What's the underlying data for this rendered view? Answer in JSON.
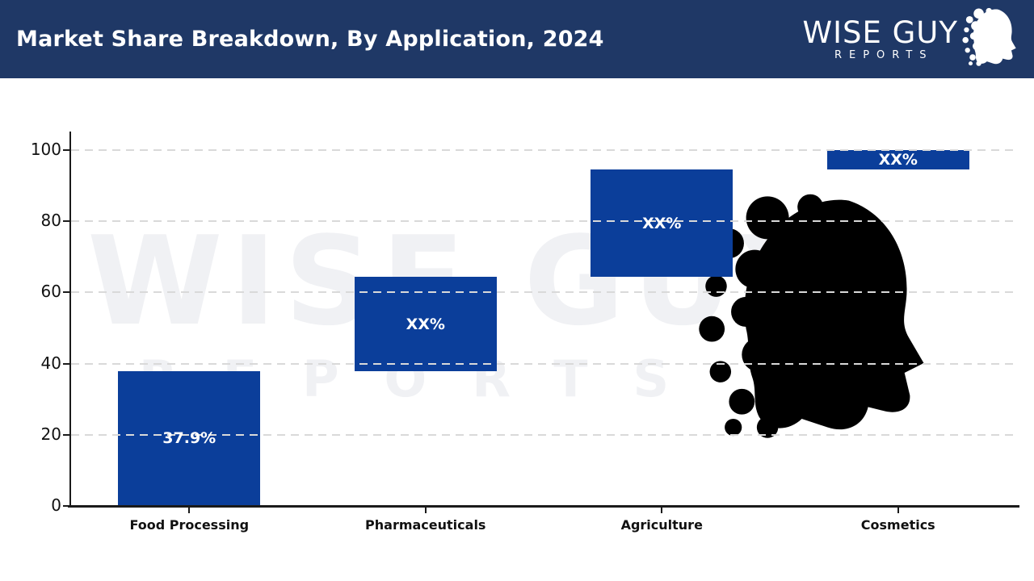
{
  "header": {
    "title": "Market Share Breakdown, By Application, 2024",
    "brand": {
      "line1": "WISE GUY",
      "line2": "REPORTS"
    }
  },
  "watermark": {
    "line1": "WISE GUY",
    "line2": "REPORTS"
  },
  "colors": {
    "header_navy": "#1f3866",
    "bar_blue": "#0b3e9a",
    "grid_gray": "#d9d9d9",
    "watermark_gray": "#f0f1f4",
    "axis_text": "#111111",
    "bar_label_white": "#ffffff"
  },
  "chart_data": {
    "type": "bar",
    "subtype": "waterfall",
    "title": "Market Share Breakdown, By Application, 2024",
    "categories": [
      "Food Processing",
      "Pharmaceuticals",
      "Agriculture",
      "Cosmetics"
    ],
    "segments": [
      {
        "category": "Food Processing",
        "start": 0,
        "end": 37.9,
        "label": "37.9%"
      },
      {
        "category": "Pharmaceuticals",
        "start": 37.9,
        "end": 64.3,
        "label": "XX%"
      },
      {
        "category": "Agriculture",
        "start": 64.3,
        "end": 94.5,
        "label": "XX%"
      },
      {
        "category": "Cosmetics",
        "start": 94.5,
        "end": 100,
        "label": "XX%"
      }
    ],
    "yticks": [
      0,
      20,
      40,
      60,
      80,
      100
    ],
    "ylim": [
      0,
      105
    ],
    "xlabel": "",
    "ylabel": "",
    "grid": "horizontal-dashed",
    "legend": "none",
    "bar_color": "#0b3e9a",
    "bar_label_color": "#ffffff"
  }
}
